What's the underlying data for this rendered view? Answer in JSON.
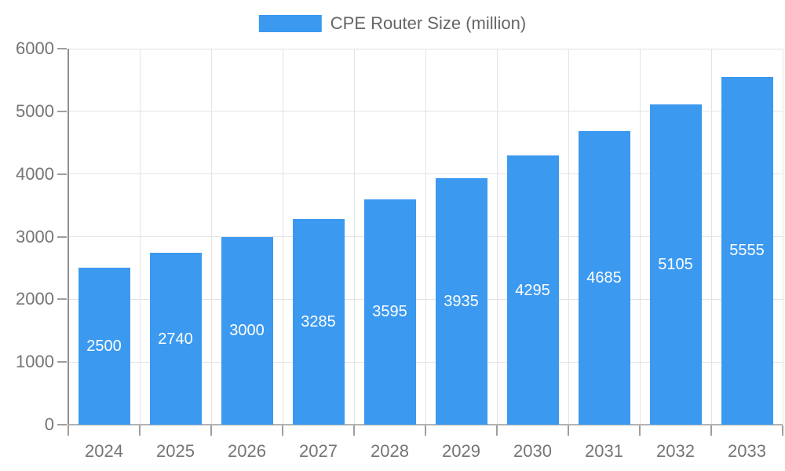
{
  "legend": {
    "label": "CPE Router Size (million)",
    "swatch_color": "#3B99F0"
  },
  "chart_data": {
    "type": "bar",
    "title": "CPE Router Size (million)",
    "categories": [
      "2024",
      "2025",
      "2026",
      "2027",
      "2028",
      "2029",
      "2030",
      "2031",
      "2032",
      "2033"
    ],
    "series": [
      {
        "name": "CPE Router Size (million)",
        "values": [
          2500,
          2740,
          3000,
          3285,
          3595,
          3935,
          4295,
          4685,
          5105,
          5555
        ]
      }
    ],
    "xlabel": "",
    "ylabel": "",
    "ylim": [
      0,
      6000
    ],
    "ytick_interval": 1000,
    "ytick_labels": [
      "0",
      "1000",
      "2000",
      "3000",
      "4000",
      "5000",
      "6000"
    ],
    "grid": true,
    "legend_position": "top-center",
    "value_labels": "inside-center",
    "colors": {
      "bar": "#3B99F0",
      "bar_label": "#FFFFFF",
      "axis_label": "#757575",
      "legend_text": "#666666",
      "gridline": "#E3E3E3",
      "y_axis_line": "#8F8F8F",
      "x_axis_line": "#B3B3B3",
      "tick": "#9E9E9E"
    }
  }
}
